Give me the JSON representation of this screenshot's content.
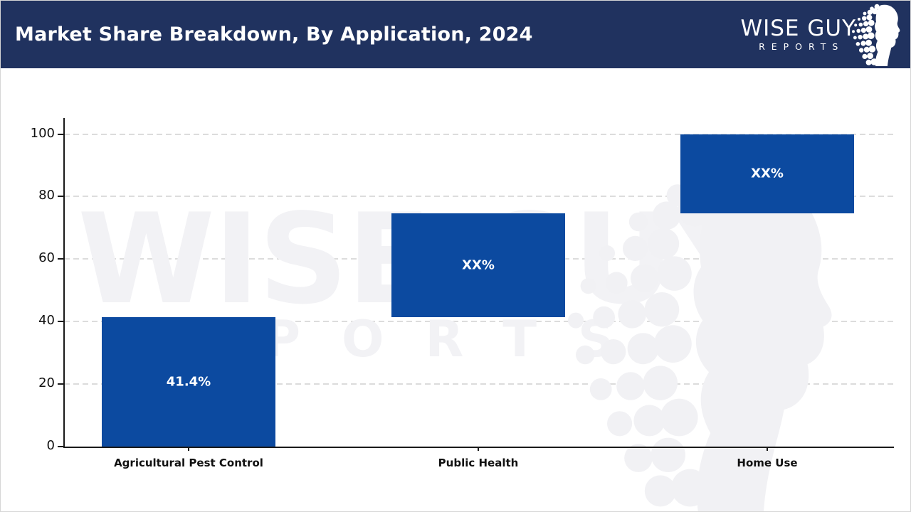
{
  "header": {
    "title": "Market Share Breakdown, By Application, 2024",
    "logo": {
      "line1": "WISE GUY",
      "line2": "REPORTS"
    },
    "bg_color": "#20325f"
  },
  "watermark": {
    "line1": "WISE GUY",
    "line2": "REPORTS"
  },
  "chart_data": {
    "type": "bar",
    "subtype": "waterfall",
    "title": "Market Share Breakdown, By Application, 2024",
    "categories": [
      "Agricultural Pest Control",
      "Public Health",
      "Home Use"
    ],
    "series": [
      {
        "name": "Market Share %",
        "segments": [
          {
            "category": "Agricultural Pest Control",
            "start": 0,
            "end": 41.4,
            "label": "41.4%"
          },
          {
            "category": "Public Health",
            "start": 41.4,
            "end": 74.6,
            "label": "XX%"
          },
          {
            "category": "Home Use",
            "start": 74.6,
            "end": 100,
            "label": "XX%"
          }
        ]
      }
    ],
    "yticks": [
      0,
      20,
      40,
      60,
      80,
      100
    ],
    "ylim": [
      0,
      105
    ],
    "xlabel": "",
    "ylabel": "",
    "bar_color": "#0c4aa0",
    "grid": "horizontal-dashed",
    "legend": "none"
  }
}
